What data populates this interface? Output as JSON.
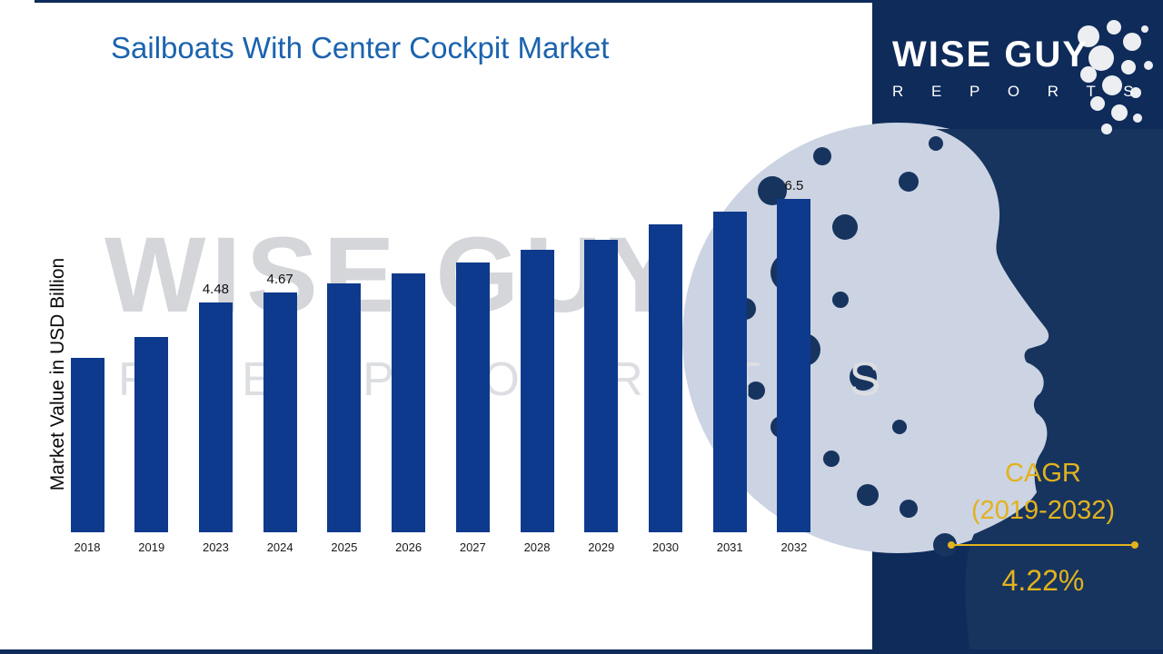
{
  "title": "Sailboats With Center Cockpit Market",
  "y_axis_label": "Market Value in USD Billion",
  "watermark": {
    "line1": "WISE GUY",
    "line2": "R E P O R T S"
  },
  "brand": {
    "line1": "WISE GUY",
    "line2": "R E P O R T S"
  },
  "cagr": {
    "label": "CAGR",
    "range": "(2019-2032)",
    "value": "4.22%"
  },
  "colors": {
    "bar": "#0e3a8d",
    "panel": "#0e2b5a",
    "title": "#1b63ae",
    "accent_gold": "#e2b31c",
    "watermark_gray": "#d6d6d6"
  },
  "chart_data": {
    "type": "bar",
    "title": "Sailboats With Center Cockpit Market",
    "xlabel": "",
    "ylabel": "Market Value in USD Billion",
    "categories": [
      "2018",
      "2019",
      "2023",
      "2024",
      "2025",
      "2026",
      "2027",
      "2028",
      "2029",
      "2030",
      "2031",
      "2032"
    ],
    "values": [
      3.4,
      3.8,
      4.48,
      4.67,
      4.85,
      5.05,
      5.25,
      5.5,
      5.7,
      6.0,
      6.25,
      6.5
    ],
    "bar_labels": [
      "",
      "",
      "4.48",
      "4.67",
      "",
      "",
      "",
      "",
      "",
      "",
      "",
      "6.5"
    ],
    "ylim": [
      0,
      7
    ],
    "grid": false,
    "legend": false
  }
}
